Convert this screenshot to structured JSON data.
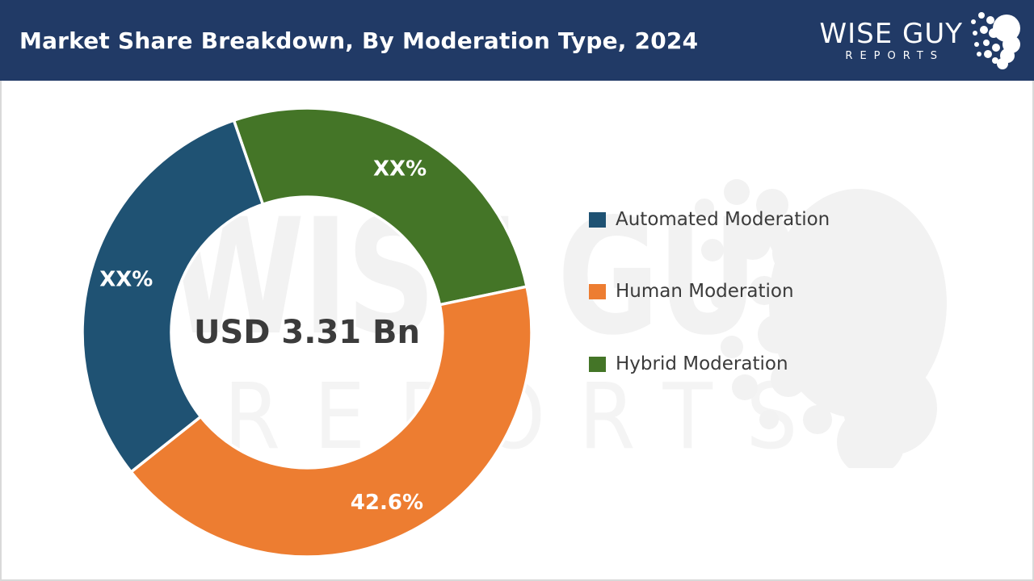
{
  "header": {
    "title": "Market Share Breakdown, By Moderation Type, 2024",
    "brand": {
      "line1": "WISE GUY",
      "line2": "REPORTS"
    }
  },
  "watermark": {
    "line1": "WISE GUY",
    "line2": "REPORTS"
  },
  "colors": {
    "header_background": "#213A66",
    "title_text": "#FFFFFF",
    "chart_text": "#3B3B3B",
    "border": "#D9D9D9"
  },
  "chart_data": {
    "type": "pie",
    "subtype": "donut",
    "title": "Market Share Breakdown, By Moderation Type, 2024",
    "center_label": "USD 3.31 Bn",
    "legend_position": "right",
    "start_angle_deg": -19,
    "draw_order": [
      2,
      1,
      0
    ],
    "inner_radius_ratio": 0.604,
    "segments": [
      {
        "name": "Automated Moderation",
        "value_pct": 30.4,
        "displayed_label": "XX%",
        "color": "#1F5273"
      },
      {
        "name": "Human Moderation",
        "value_pct": 42.6,
        "displayed_label": "42.6%",
        "color": "#ED7D31"
      },
      {
        "name": "Hybrid Moderation",
        "value_pct": 27.0,
        "displayed_label": "XX%",
        "color": "#447527"
      }
    ]
  }
}
